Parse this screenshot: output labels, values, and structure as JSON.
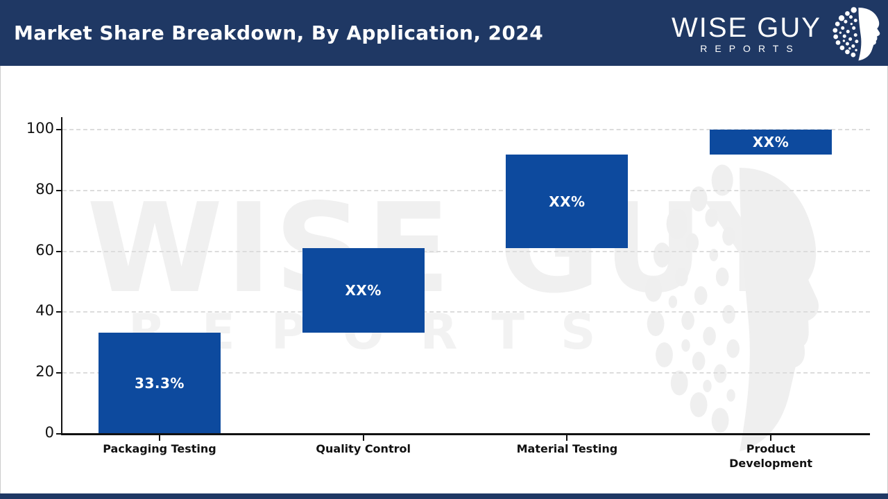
{
  "header": {
    "title": "Market Share Breakdown, By Application, 2024",
    "background_color": "#1f3864"
  },
  "logo": {
    "line1": "WISE GUY",
    "line2": "REPORTS",
    "icon": "dotted-head-profile-icon"
  },
  "watermark": {
    "line1": "WISE GUY",
    "line2": "REPORTS",
    "icon": "dotted-head-profile-icon"
  },
  "footer": {
    "background_color": "#1f3864"
  },
  "chart_data": {
    "type": "bar",
    "subtype": "waterfall",
    "title": "Market Share Breakdown, By Application, 2024",
    "xlabel": "",
    "ylabel": "",
    "categories": [
      "Packaging Testing",
      "Quality Control",
      "Material Testing",
      "Product Development"
    ],
    "segments": [
      {
        "category": "Packaging Testing",
        "start": 0,
        "end": 33.3,
        "value": 33.3,
        "label": "33.3%"
      },
      {
        "category": "Quality Control",
        "start": 33.3,
        "end": 61.1,
        "value": 27.8,
        "label": "XX%"
      },
      {
        "category": "Material Testing",
        "start": 61.1,
        "end": 91.7,
        "value": 30.6,
        "label": "XX%"
      },
      {
        "category": "Product Development",
        "start": 91.7,
        "end": 100,
        "value": 8.3,
        "label": "XX%"
      }
    ],
    "yticks": [
      0,
      20,
      40,
      60,
      80,
      100
    ],
    "ylim": [
      0,
      104
    ],
    "grid": "horizontal-dashed",
    "legend": "none",
    "bar_color": "#0d4a9e",
    "bar_label_color": "#ffffff",
    "axis_color": "#111111",
    "gridline_color": "#dcdcdc"
  }
}
